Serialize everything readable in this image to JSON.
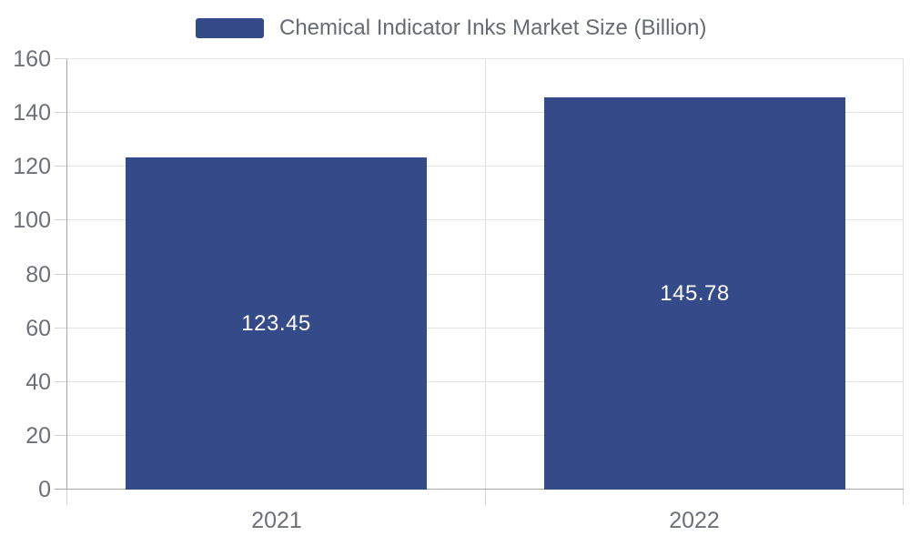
{
  "chart_data": {
    "type": "bar",
    "title": "",
    "legend_entries": [
      "Chemical Indicator Inks Market Size (Billion)"
    ],
    "legend_position": "top",
    "categories": [
      "2021",
      "2022"
    ],
    "series": [
      {
        "name": "Chemical Indicator Inks Market Size (Billion)",
        "values": [
          123.45,
          145.78
        ],
        "value_labels": [
          "123.45",
          "145.78"
        ]
      }
    ],
    "xlabel": "",
    "ylabel": "",
    "ylim": [
      0,
      160
    ],
    "yticks": [
      0,
      20,
      40,
      60,
      80,
      100,
      120,
      140,
      160
    ],
    "ytick_labels": [
      "0",
      "20",
      "40",
      "60",
      "80",
      "100",
      "120",
      "140",
      "160"
    ],
    "grid": true
  },
  "colors": {
    "bar_fill": "#354a88",
    "bar_value_text": "#ffffff",
    "axis_line": "#a6a6a6",
    "grid_line": "#e4e4e4",
    "split_line": "#e0e0e0",
    "tick_mark": "#d4d4d4",
    "tick_label_text": "#6e7079",
    "legend_text": "#676b73",
    "background": "#ffffff"
  }
}
